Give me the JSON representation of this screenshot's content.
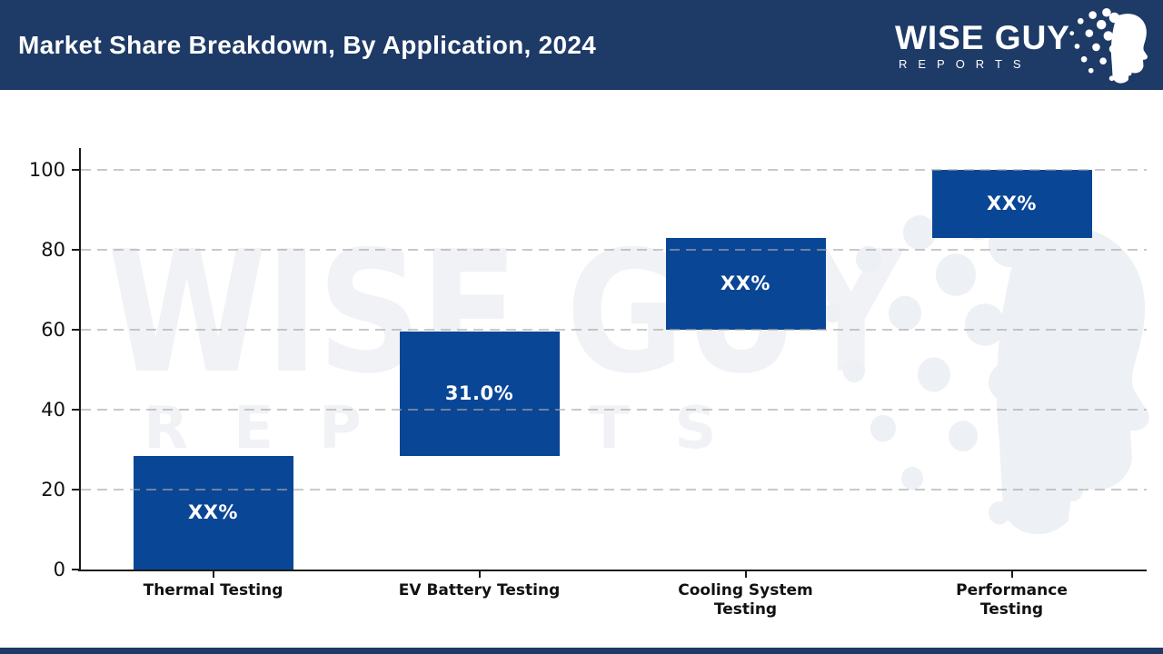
{
  "header": {
    "title": "Market Share Breakdown, By Application, 2024",
    "logo": {
      "line1": "WISE GUY",
      "line2": "REPORTS"
    }
  },
  "watermark": {
    "line1": "WISE GUY",
    "line2": "REPORTS"
  },
  "colors": {
    "header_bg": "#1e3a66",
    "bar": "#0a4696",
    "grid": "#a8a8a8",
    "axis": "#1a1a1a",
    "watermark": "#f1f2f6",
    "watermark_dots": "#edf0f4",
    "bar_label": "#ffffff"
  },
  "chart_data": {
    "type": "bar",
    "subtype": "waterfall",
    "title": "Market Share Breakdown, By Application, 2024",
    "categories": [
      "Thermal Testing",
      "EV Battery Testing",
      "Cooling System Testing",
      "Performance Testing"
    ],
    "segments": [
      {
        "category": "Thermal Testing",
        "label_lines": [
          "Thermal Testing"
        ],
        "start": 0,
        "end": 28.5,
        "value_label": "XX%"
      },
      {
        "category": "EV Battery Testing",
        "label_lines": [
          "EV Battery Testing"
        ],
        "start": 28.5,
        "end": 59.5,
        "value_label": "31.0%",
        "value": 31.0
      },
      {
        "category": "Cooling System Testing",
        "label_lines": [
          "Cooling System",
          "Testing"
        ],
        "start": 60.0,
        "end": 83.0,
        "value_label": "XX%"
      },
      {
        "category": "Performance Testing",
        "label_lines": [
          "Performance",
          "Testing"
        ],
        "start": 83.0,
        "end": 100.0,
        "value_label": "XX%"
      }
    ],
    "yticks": [
      0,
      20,
      40,
      60,
      80,
      100
    ],
    "ylim": [
      0,
      105
    ],
    "xlabel": "",
    "ylabel": "",
    "grid": true,
    "grid_style": "dashed",
    "legend": false
  }
}
